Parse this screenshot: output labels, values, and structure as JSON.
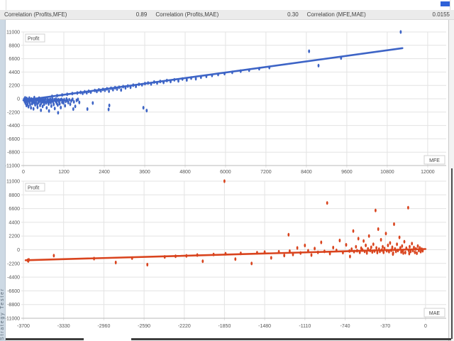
{
  "header": {
    "items": [
      {
        "label": "Correlation (Profits,MFE)",
        "value": "0.89"
      },
      {
        "label": "Correlation (Profits,MAE)",
        "value": "0.30"
      },
      {
        "label": "Correlation (MFE,MAE)",
        "value": "0.0155"
      }
    ]
  },
  "sidebar": {
    "label": "Strategy Tester"
  },
  "colors": {
    "blue": "#3d64c6",
    "red": "#d9441e",
    "grid": "#e3e3e3",
    "axis": "#b9b9b9",
    "tick_text": "#555555",
    "label_text": "#444444",
    "header_bg": "#ebebeb",
    "sidebar_bg": "#cdd9e4",
    "accent_square": "#2f62d8"
  },
  "chart_data": [
    {
      "type": "scatter",
      "name": "profit-vs-mfe",
      "series_label": "Profit",
      "x_axis_label": "MFE",
      "color": "#3d64c6",
      "xlim": [
        0,
        12550
      ],
      "ylim": [
        -11000,
        11000
      ],
      "x_ticks": [
        0,
        1200,
        2400,
        3600,
        4800,
        6000,
        7200,
        8400,
        9600,
        10800,
        12000
      ],
      "y_ticks": [
        11000,
        8800,
        6600,
        4400,
        2200,
        0,
        -2200,
        -4400,
        -6600,
        -8800,
        -11000
      ],
      "grid": true,
      "trend": [
        [
          0,
          -260
        ],
        [
          11250,
          8330
        ]
      ],
      "points": [
        [
          20,
          -100
        ],
        [
          35,
          -400
        ],
        [
          50,
          150
        ],
        [
          60,
          -700
        ],
        [
          75,
          -250
        ],
        [
          90,
          -1100
        ],
        [
          100,
          50
        ],
        [
          110,
          -500
        ],
        [
          125,
          -850
        ],
        [
          140,
          -150
        ],
        [
          150,
          -1300
        ],
        [
          160,
          -350
        ],
        [
          175,
          100
        ],
        [
          185,
          -600
        ],
        [
          200,
          -950
        ],
        [
          210,
          -200
        ],
        [
          225,
          -1500
        ],
        [
          235,
          -50
        ],
        [
          250,
          -450
        ],
        [
          260,
          -800
        ],
        [
          275,
          -120
        ],
        [
          290,
          -600
        ],
        [
          300,
          -1650
        ],
        [
          310,
          -300
        ],
        [
          325,
          200
        ],
        [
          340,
          -700
        ],
        [
          350,
          -1000
        ],
        [
          365,
          -180
        ],
        [
          380,
          -520
        ],
        [
          395,
          -80
        ],
        [
          410,
          -900
        ],
        [
          420,
          -1400
        ],
        [
          435,
          -250
        ],
        [
          450,
          -600
        ],
        [
          465,
          100
        ],
        [
          480,
          -380
        ],
        [
          495,
          -1100
        ],
        [
          510,
          -200
        ],
        [
          520,
          -1900
        ],
        [
          525,
          -750
        ],
        [
          540,
          -60
        ],
        [
          555,
          -480
        ],
        [
          570,
          -1250
        ],
        [
          585,
          -150
        ],
        [
          600,
          -550
        ],
        [
          615,
          -900
        ],
        [
          630,
          -220
        ],
        [
          645,
          -420
        ],
        [
          660,
          50
        ],
        [
          675,
          -680
        ],
        [
          690,
          -1500
        ],
        [
          705,
          -300
        ],
        [
          720,
          -130
        ],
        [
          735,
          -560
        ],
        [
          750,
          -870
        ],
        [
          760,
          -2000
        ],
        [
          765,
          -210
        ],
        [
          780,
          -420
        ],
        [
          800,
          -90
        ],
        [
          815,
          -640
        ],
        [
          830,
          -1200
        ],
        [
          845,
          -280
        ],
        [
          850,
          400
        ],
        [
          860,
          -30
        ],
        [
          880,
          -510
        ],
        [
          900,
          -940
        ],
        [
          915,
          -170
        ],
        [
          930,
          -1600
        ],
        [
          950,
          -380
        ],
        [
          965,
          -60
        ],
        [
          985,
          -720
        ],
        [
          1000,
          -240
        ],
        [
          1000,
          500
        ],
        [
          1020,
          -1030
        ],
        [
          1030,
          -2300
        ],
        [
          1035,
          -140
        ],
        [
          1055,
          -470
        ],
        [
          1075,
          -820
        ],
        [
          1090,
          -200
        ],
        [
          1110,
          -1450
        ],
        [
          1130,
          -90
        ],
        [
          1150,
          620
        ],
        [
          1150,
          -560
        ],
        [
          1170,
          -310
        ],
        [
          1190,
          -680
        ],
        [
          1210,
          -160
        ],
        [
          1235,
          -1150
        ],
        [
          1255,
          -420
        ],
        [
          1280,
          -40
        ],
        [
          1300,
          740
        ],
        [
          1300,
          -260
        ],
        [
          1330,
          -620
        ],
        [
          1360,
          -150
        ],
        [
          1390,
          -900
        ],
        [
          1420,
          -350
        ],
        [
          1450,
          850
        ],
        [
          1460,
          -80
        ],
        [
          1480,
          -1700
        ],
        [
          1500,
          -500
        ],
        [
          1540,
          -1250
        ],
        [
          1580,
          -270
        ],
        [
          1600,
          950
        ],
        [
          1620,
          -100
        ],
        [
          1660,
          -600
        ],
        [
          1700,
          1050
        ],
        [
          1760,
          900
        ],
        [
          1820,
          1150
        ],
        [
          1880,
          1000
        ],
        [
          1900,
          -1700
        ],
        [
          1940,
          1230
        ],
        [
          2000,
          1100
        ],
        [
          2060,
          -700
        ],
        [
          2120,
          1370
        ],
        [
          2180,
          1200
        ],
        [
          2240,
          1460
        ],
        [
          2300,
          1300
        ],
        [
          2360,
          1550
        ],
        [
          2420,
          1400
        ],
        [
          2480,
          1640
        ],
        [
          2530,
          -1750
        ],
        [
          2540,
          1250
        ],
        [
          2550,
          -1100
        ],
        [
          2600,
          1730
        ],
        [
          2660,
          1500
        ],
        [
          2720,
          1820
        ],
        [
          2780,
          1600
        ],
        [
          2840,
          1900
        ],
        [
          2900,
          1450
        ],
        [
          2960,
          2000
        ],
        [
          3030,
          1800
        ],
        [
          3100,
          2100
        ],
        [
          3180,
          1900
        ],
        [
          3260,
          2230
        ],
        [
          3340,
          2050
        ],
        [
          3430,
          2370
        ],
        [
          3520,
          2300
        ],
        [
          3560,
          -1480
        ],
        [
          3610,
          2500
        ],
        [
          3660,
          -1940
        ],
        [
          3700,
          2600
        ],
        [
          3790,
          2450
        ],
        [
          3880,
          2750
        ],
        [
          3970,
          2600
        ],
        [
          4060,
          2850
        ],
        [
          4160,
          2700
        ],
        [
          4260,
          3000
        ],
        [
          4370,
          2850
        ],
        [
          4480,
          3120
        ],
        [
          4600,
          2950
        ],
        [
          4720,
          3250
        ],
        [
          4850,
          3100
        ],
        [
          4980,
          3400
        ],
        [
          5120,
          3300
        ],
        [
          5270,
          3550
        ],
        [
          5430,
          3700
        ],
        [
          5600,
          3850
        ],
        [
          5780,
          4000
        ],
        [
          5970,
          4150
        ],
        [
          6200,
          4350
        ],
        [
          6450,
          4550
        ],
        [
          6700,
          4700
        ],
        [
          7000,
          4950
        ],
        [
          7300,
          5150
        ],
        [
          8480,
          7830
        ],
        [
          8760,
          5470
        ],
        [
          9430,
          6700
        ],
        [
          11200,
          11000
        ]
      ]
    },
    {
      "type": "scatter",
      "name": "profit-vs-mae",
      "series_label": "Profit",
      "x_axis_label": "MAE",
      "color": "#d9441e",
      "xlim": [
        -3700,
        190
      ],
      "ylim": [
        -11000,
        11000
      ],
      "x_ticks": [
        -3700,
        -3330,
        -2960,
        -2590,
        -2220,
        -1850,
        -1480,
        -1110,
        -740,
        -370,
        0
      ],
      "y_ticks": [
        11000,
        8800,
        6600,
        4400,
        2200,
        0,
        -2200,
        -4400,
        -6600,
        -8800,
        -11000
      ],
      "grid": true,
      "trend": [
        [
          -3680,
          -1690
        ],
        [
          0,
          110
        ]
      ],
      "points": [
        [
          -3660,
          -1700
        ],
        [
          -3655,
          -1800
        ],
        [
          -3650,
          -1620
        ],
        [
          -3420,
          -950
        ],
        [
          -3050,
          -1420
        ],
        [
          -2850,
          -2050
        ],
        [
          -2700,
          -1350
        ],
        [
          -2560,
          -2390
        ],
        [
          -2400,
          -1150
        ],
        [
          -2300,
          -1050
        ],
        [
          -2200,
          -980
        ],
        [
          -2100,
          -850
        ],
        [
          -2050,
          -1850
        ],
        [
          -1950,
          -760
        ],
        [
          -1850,
          11000
        ],
        [
          -1840,
          -640
        ],
        [
          -1750,
          -1500
        ],
        [
          -1700,
          -580
        ],
        [
          -1600,
          -2200
        ],
        [
          -1550,
          -480
        ],
        [
          -1480,
          -380
        ],
        [
          -1420,
          -1300
        ],
        [
          -1350,
          -320
        ],
        [
          -1300,
          -920
        ],
        [
          -1260,
          2400
        ],
        [
          -1250,
          -230
        ],
        [
          -1220,
          -760
        ],
        [
          -1180,
          280
        ],
        [
          -1150,
          -520
        ],
        [
          -1110,
          680
        ],
        [
          -1080,
          -170
        ],
        [
          -1050,
          -860
        ],
        [
          -1020,
          190
        ],
        [
          -990,
          -420
        ],
        [
          -960,
          1180
        ],
        [
          -930,
          -260
        ],
        [
          -905,
          7500
        ],
        [
          -880,
          -610
        ],
        [
          -850,
          340
        ],
        [
          -820,
          -110
        ],
        [
          -790,
          1480
        ],
        [
          -760,
          -460
        ],
        [
          -730,
          790
        ],
        [
          -700,
          -210
        ],
        [
          -695,
          -1080
        ],
        [
          -680,
          90
        ],
        [
          -665,
          3000
        ],
        [
          -658,
          -310
        ],
        [
          -640,
          480
        ],
        [
          -630,
          -160
        ],
        [
          -618,
          1780
        ],
        [
          -605,
          -420
        ],
        [
          -592,
          240
        ],
        [
          -580,
          -60
        ],
        [
          -570,
          1400
        ],
        [
          -560,
          -260
        ],
        [
          -550,
          690
        ],
        [
          -540,
          -510
        ],
        [
          -530,
          140
        ],
        [
          -520,
          2200
        ],
        [
          -510,
          -110
        ],
        [
          -500,
          390
        ],
        [
          -490,
          -360
        ],
        [
          -480,
          880
        ],
        [
          -470,
          -210
        ],
        [
          -460,
          6300
        ],
        [
          -452,
          290
        ],
        [
          -444,
          -450
        ],
        [
          -435,
          3300
        ],
        [
          -428,
          90
        ],
        [
          -420,
          -260
        ],
        [
          -410,
          1600
        ],
        [
          -402,
          -60
        ],
        [
          -394,
          480
        ],
        [
          -386,
          -410
        ],
        [
          -378,
          190
        ],
        [
          -365,
          2600
        ],
        [
          -356,
          -160
        ],
        [
          -346,
          690
        ],
        [
          -336,
          -310
        ],
        [
          -326,
          1080
        ],
        [
          -316,
          -90
        ],
        [
          -306,
          390
        ],
        [
          -300,
          -700
        ],
        [
          -298,
          -520
        ],
        [
          -290,
          4100
        ],
        [
          -281,
          140
        ],
        [
          -272,
          -260
        ],
        [
          -263,
          880
        ],
        [
          -254,
          -110
        ],
        [
          -240,
          1980
        ],
        [
          -232,
          290
        ],
        [
          -224,
          -360
        ],
        [
          -216,
          590
        ],
        [
          -208,
          -160
        ],
        [
          -205,
          -540
        ],
        [
          -195,
          1290
        ],
        [
          -186,
          -460
        ],
        [
          -177,
          240
        ],
        [
          -160,
          6750
        ],
        [
          -155,
          -90
        ],
        [
          -150,
          -620
        ],
        [
          -146,
          490
        ],
        [
          -137,
          -260
        ],
        [
          -125,
          990
        ],
        [
          -116,
          -130
        ],
        [
          -107,
          340
        ],
        [
          -98,
          -410
        ],
        [
          -89,
          140
        ],
        [
          -80,
          -560
        ],
        [
          -71,
          590
        ],
        [
          -62,
          -110
        ],
        [
          -53,
          290
        ],
        [
          -44,
          -310
        ],
        [
          -35,
          90
        ],
        [
          -26,
          -160
        ]
      ]
    }
  ]
}
